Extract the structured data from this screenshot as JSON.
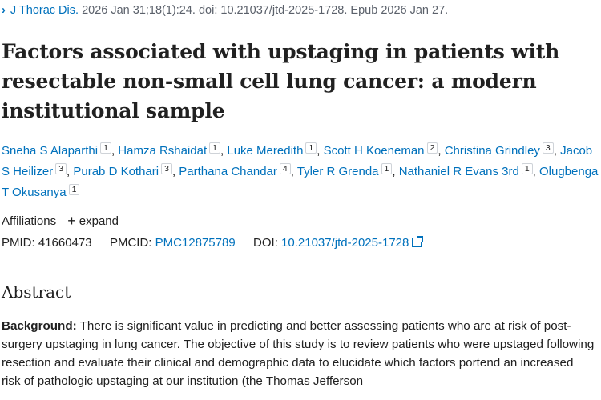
{
  "citation": {
    "journal": "J Thorac Dis.",
    "details": "2026 Jan 31;18(1):24. doi: 10.21037/jtd-2025-1728. Epub 2026 Jan 27."
  },
  "title": "Factors associated with upstaging in patients with resectable non-small cell lung cancer: a modern institutional sample",
  "authors": [
    {
      "name": "Sneha S Alaparthi",
      "aff": "1"
    },
    {
      "name": "Hamza Rshaidat",
      "aff": "1"
    },
    {
      "name": "Luke Meredith",
      "aff": "1"
    },
    {
      "name": "Scott H Koeneman",
      "aff": "2"
    },
    {
      "name": "Christina Grindley",
      "aff": "3"
    },
    {
      "name": "Jacob S Heilizer",
      "aff": "3"
    },
    {
      "name": "Purab D Kothari",
      "aff": "3"
    },
    {
      "name": "Parthana Chandar",
      "aff": "4"
    },
    {
      "name": "Tyler R Grenda",
      "aff": "1"
    },
    {
      "name": "Nathaniel R Evans 3rd",
      "aff": "1"
    },
    {
      "name": "Olugbenga T Okusanya",
      "aff": "1"
    }
  ],
  "affiliations": {
    "label": "Affiliations",
    "expand": "expand"
  },
  "ids": {
    "pmid_label": "PMID:",
    "pmid": "41660473",
    "pmcid_label": "PMCID:",
    "pmcid": "PMC12875789",
    "doi_label": "DOI:",
    "doi": "10.21037/jtd-2025-1728"
  },
  "abstract": {
    "heading": "Abstract",
    "background_label": "Background:",
    "background_text": "There is significant value in predicting and better assessing patients who are at risk of post-surgery upstaging in lung cancer. The objective of this study is to review patients who were upstaged following resection and evaluate their clinical and demographic data to elucidate which factors portend an increased risk of pathologic upstaging at our institution (the Thomas Jefferson"
  }
}
